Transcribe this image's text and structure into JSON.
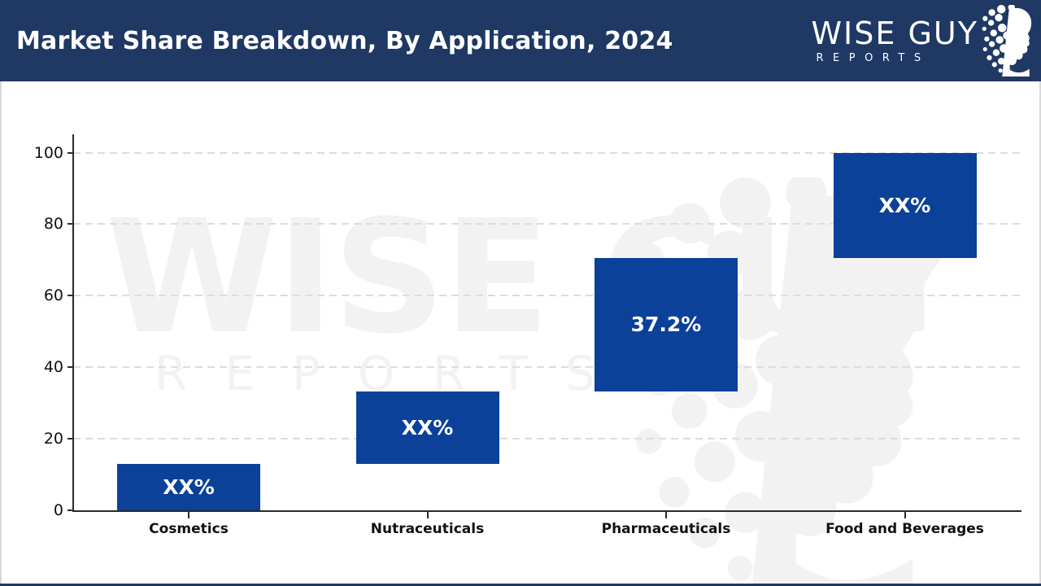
{
  "header": {
    "title": "Market Share Breakdown, By Application, 2024",
    "logo": {
      "wordmark": "WISE GUY",
      "subtitle": "REPORTS"
    }
  },
  "watermark": {
    "wordmark": "WISE GUY",
    "subtitle": "REPORTS"
  },
  "colors": {
    "header_bg": "#1f3864",
    "bar": "#0b4199",
    "bar_label": "#ffffff",
    "gridline": "#dcdcdc",
    "axis": "#2b2b2b",
    "tick_text": "#111111",
    "watermark": "#f2f2f2"
  },
  "chart_data": {
    "type": "bar",
    "subtype": "waterfall",
    "title": "Market Share Breakdown, By Application, 2024",
    "categories": [
      "Cosmetics",
      "Nutraceuticals",
      "Pharmaceuticals",
      "Food and Beverages"
    ],
    "segments": [
      {
        "category": "Cosmetics",
        "start": 0,
        "end": 13,
        "label": "XX%"
      },
      {
        "category": "Nutraceuticals",
        "start": 13,
        "end": 33.3,
        "label": "XX%"
      },
      {
        "category": "Pharmaceuticals",
        "start": 33.3,
        "end": 70.5,
        "label": "37.2%"
      },
      {
        "category": "Food and Beverages",
        "start": 70.5,
        "end": 100,
        "label": "XX%"
      }
    ],
    "yticks": [
      0,
      20,
      40,
      60,
      80,
      100
    ],
    "ylim": [
      0,
      105
    ],
    "grid": "horizontal-dashed",
    "legend": "none",
    "xlabel": "",
    "ylabel": ""
  }
}
